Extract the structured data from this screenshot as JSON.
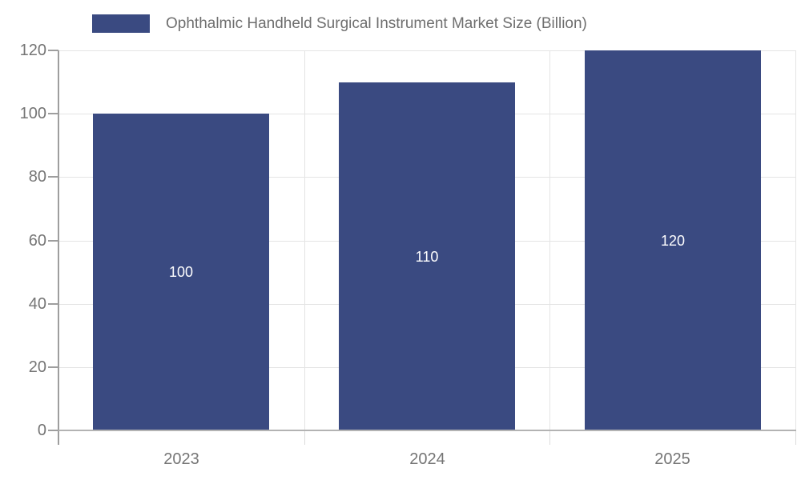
{
  "chart_data": {
    "type": "bar",
    "title": "Ophthalmic Handheld Surgical Instrument Market Size (Billion)",
    "categories": [
      "2023",
      "2024",
      "2025"
    ],
    "values": [
      100,
      110,
      120
    ],
    "value_labels": [
      "100",
      "110",
      "120"
    ],
    "ytick_labels": [
      "0",
      "20",
      "40",
      "60",
      "80",
      "100",
      "120"
    ],
    "yticks": [
      0,
      20,
      40,
      60,
      80,
      100,
      120
    ],
    "ylim": [
      0,
      120
    ],
    "xlabel": "",
    "ylabel": "",
    "grid": true,
    "legend_position": "top-left",
    "legend_entries": [
      "Ophthalmic Handheld Surgical Instrument Market Size (Billion)"
    ]
  },
  "colors": {
    "bar": "#3a4a81",
    "bar_value_text": "#ffffff",
    "legend_text": "#6f6f6f",
    "tick_text": "#757575",
    "y_axis": "#9e9e9e",
    "x_axis": "#b3b3b3",
    "gridline": "#e4e4e4",
    "background": "#ffffff"
  }
}
